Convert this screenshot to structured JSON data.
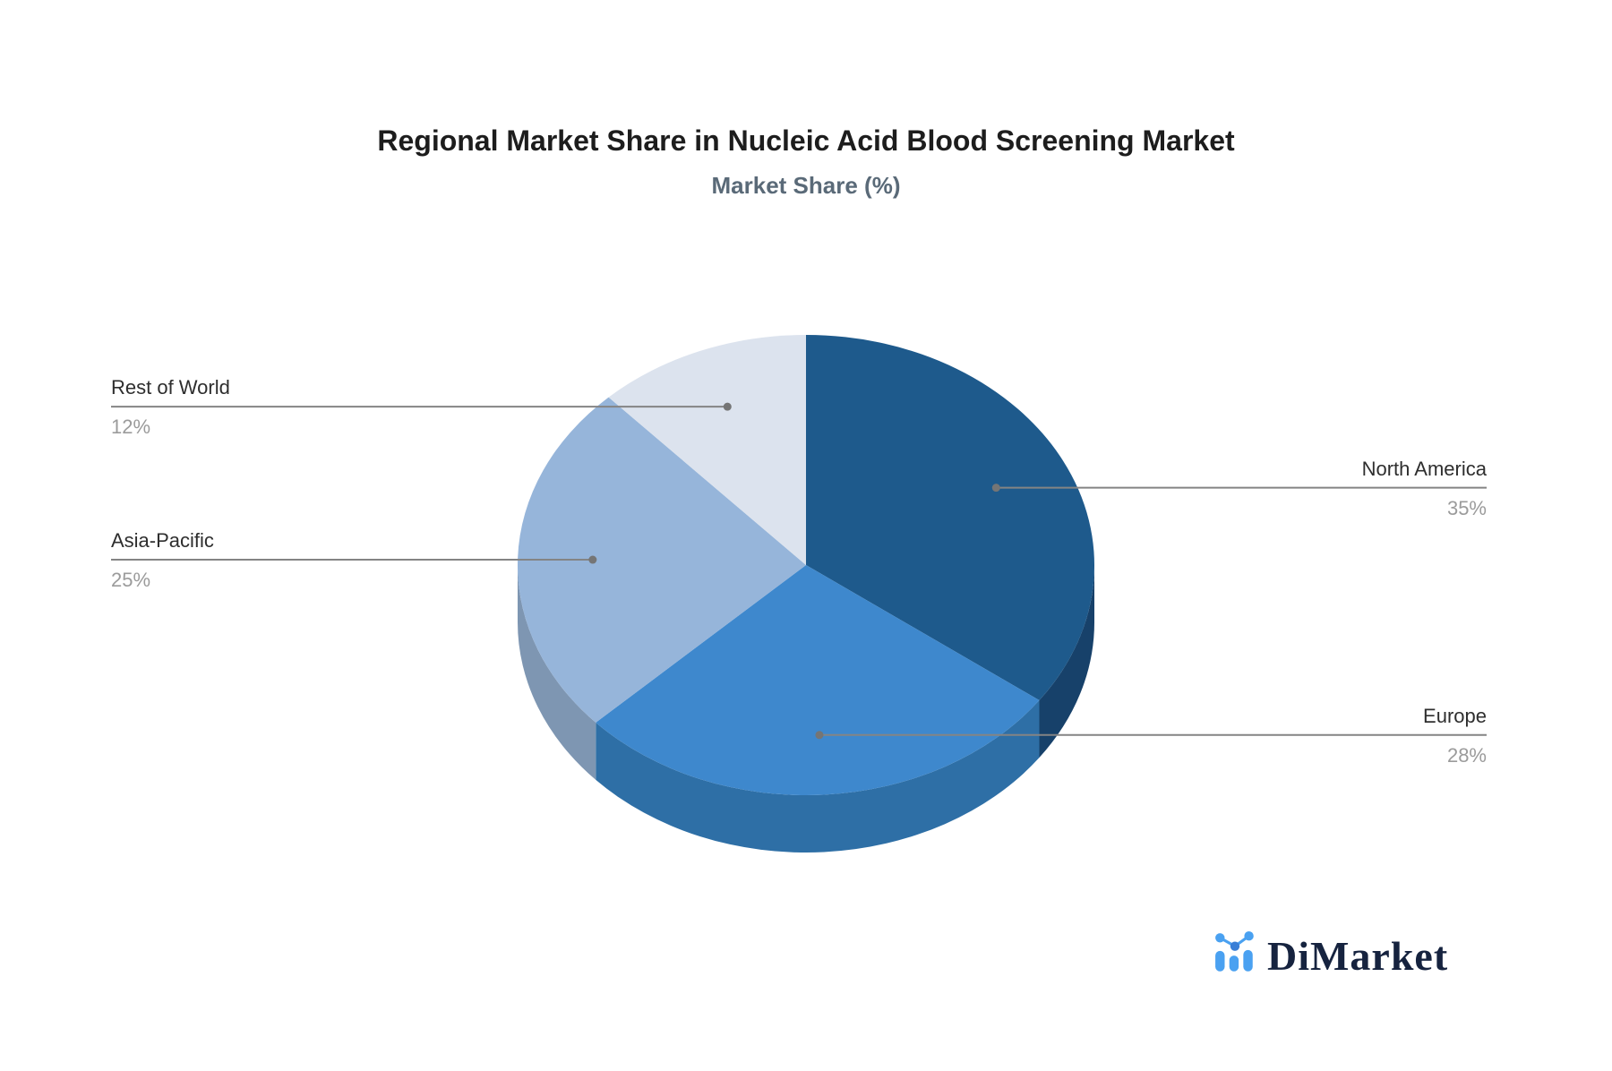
{
  "chart_data": {
    "type": "pie",
    "title": "Regional Market Share in Nucleic Acid Blood Screening Market",
    "subtitle": "Market Share (%)",
    "unit": "%",
    "direction": "clockwise",
    "start_position": "12-oclock",
    "style": "3d-pie-with-callout-labels",
    "series": [
      {
        "label": "North America",
        "value": 35,
        "color": "#1E5A8C",
        "side_color": "#17416A"
      },
      {
        "label": "Europe",
        "value": 28,
        "color": "#3E88CD",
        "side_color": "#2E6FA6"
      },
      {
        "label": "Asia-Pacific",
        "value": 25,
        "color": "#96B5DA",
        "side_color": "#7E96B2"
      },
      {
        "label": "Rest of World",
        "value": 12,
        "color": "#DCE3EE"
      }
    ],
    "value_labels_shown": [
      "35%",
      "28%",
      "25%",
      "12%"
    ],
    "label_color": "#2e2e2e",
    "value_color": "#9b9b9b",
    "callout_line_color": "#848484",
    "callout_dot_color": "#757575",
    "legend": "none",
    "grid": "off"
  },
  "logo": {
    "text": "DiMarket",
    "icon": "bar-chart-logo-icon",
    "icon_color": "#4AA1F1",
    "text_color": "#16233F"
  }
}
